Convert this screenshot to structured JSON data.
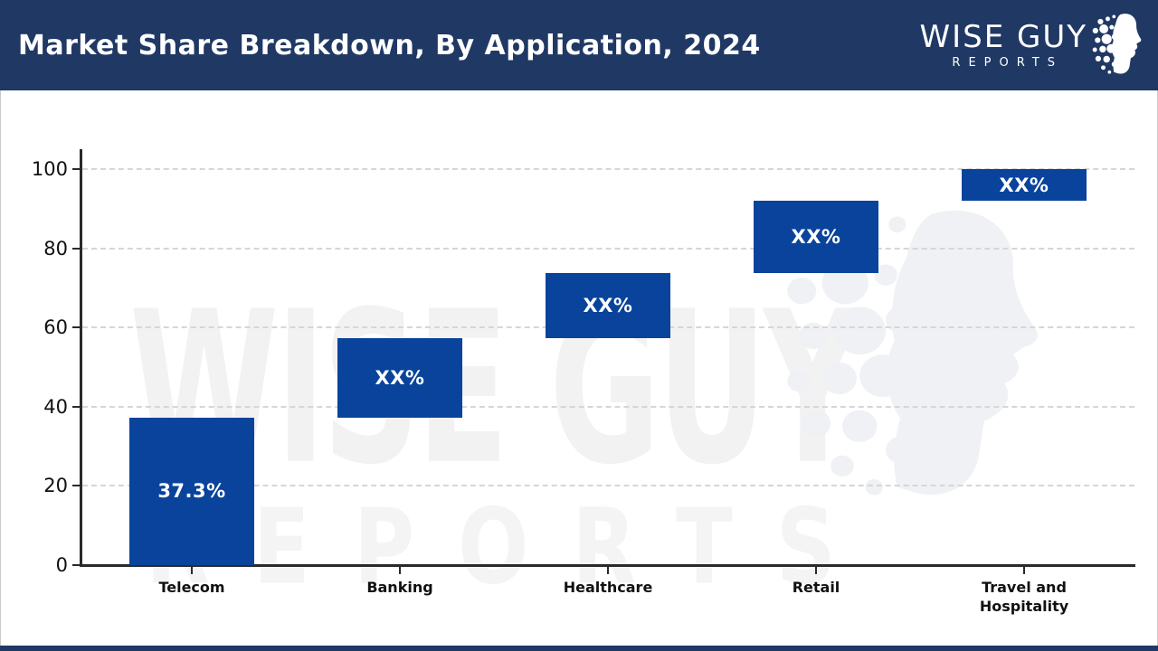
{
  "header": {
    "title": "Market Share Breakdown, By Application, 2024",
    "logo": {
      "name": "WISE GUY",
      "tagline": "REPORTS"
    }
  },
  "watermark": {
    "line1": "WISE GUY",
    "line2": "REPORTS"
  },
  "chart_data": {
    "type": "bar",
    "subtype": "waterfall-floating-bars",
    "title": "Market Share Breakdown, By Application, 2024",
    "categories": [
      "Telecom",
      "Banking",
      "Healthcare",
      "Retail",
      "Travel and Hospitality"
    ],
    "segments": [
      {
        "category": "Telecom",
        "start": 0,
        "end": 37.3,
        "label": "37.3%"
      },
      {
        "category": "Banking",
        "start": 37.3,
        "end": 57.4,
        "label": "XX%"
      },
      {
        "category": "Healthcare",
        "start": 57.4,
        "end": 73.8,
        "label": "XX%"
      },
      {
        "category": "Retail",
        "start": 73.8,
        "end": 91.9,
        "label": "XX%"
      },
      {
        "category": "Travel and Hospitality",
        "start": 91.9,
        "end": 100,
        "label": "XX%"
      }
    ],
    "y_ticks": [
      0,
      20,
      40,
      60,
      80,
      100
    ],
    "ylim": [
      0,
      105
    ],
    "xlabel": "",
    "ylabel": "",
    "grid": "horizontal-dashed",
    "legend": "none",
    "colors": {
      "bar": "#09439b",
      "bar_label": "#ffffff",
      "axis": "#2a2a2a",
      "grid": "#d6d6d6",
      "tick_label": "#111111",
      "header_bg": "#203864",
      "header_text": "#ffffff",
      "watermark": "#f2f2f2"
    }
  }
}
